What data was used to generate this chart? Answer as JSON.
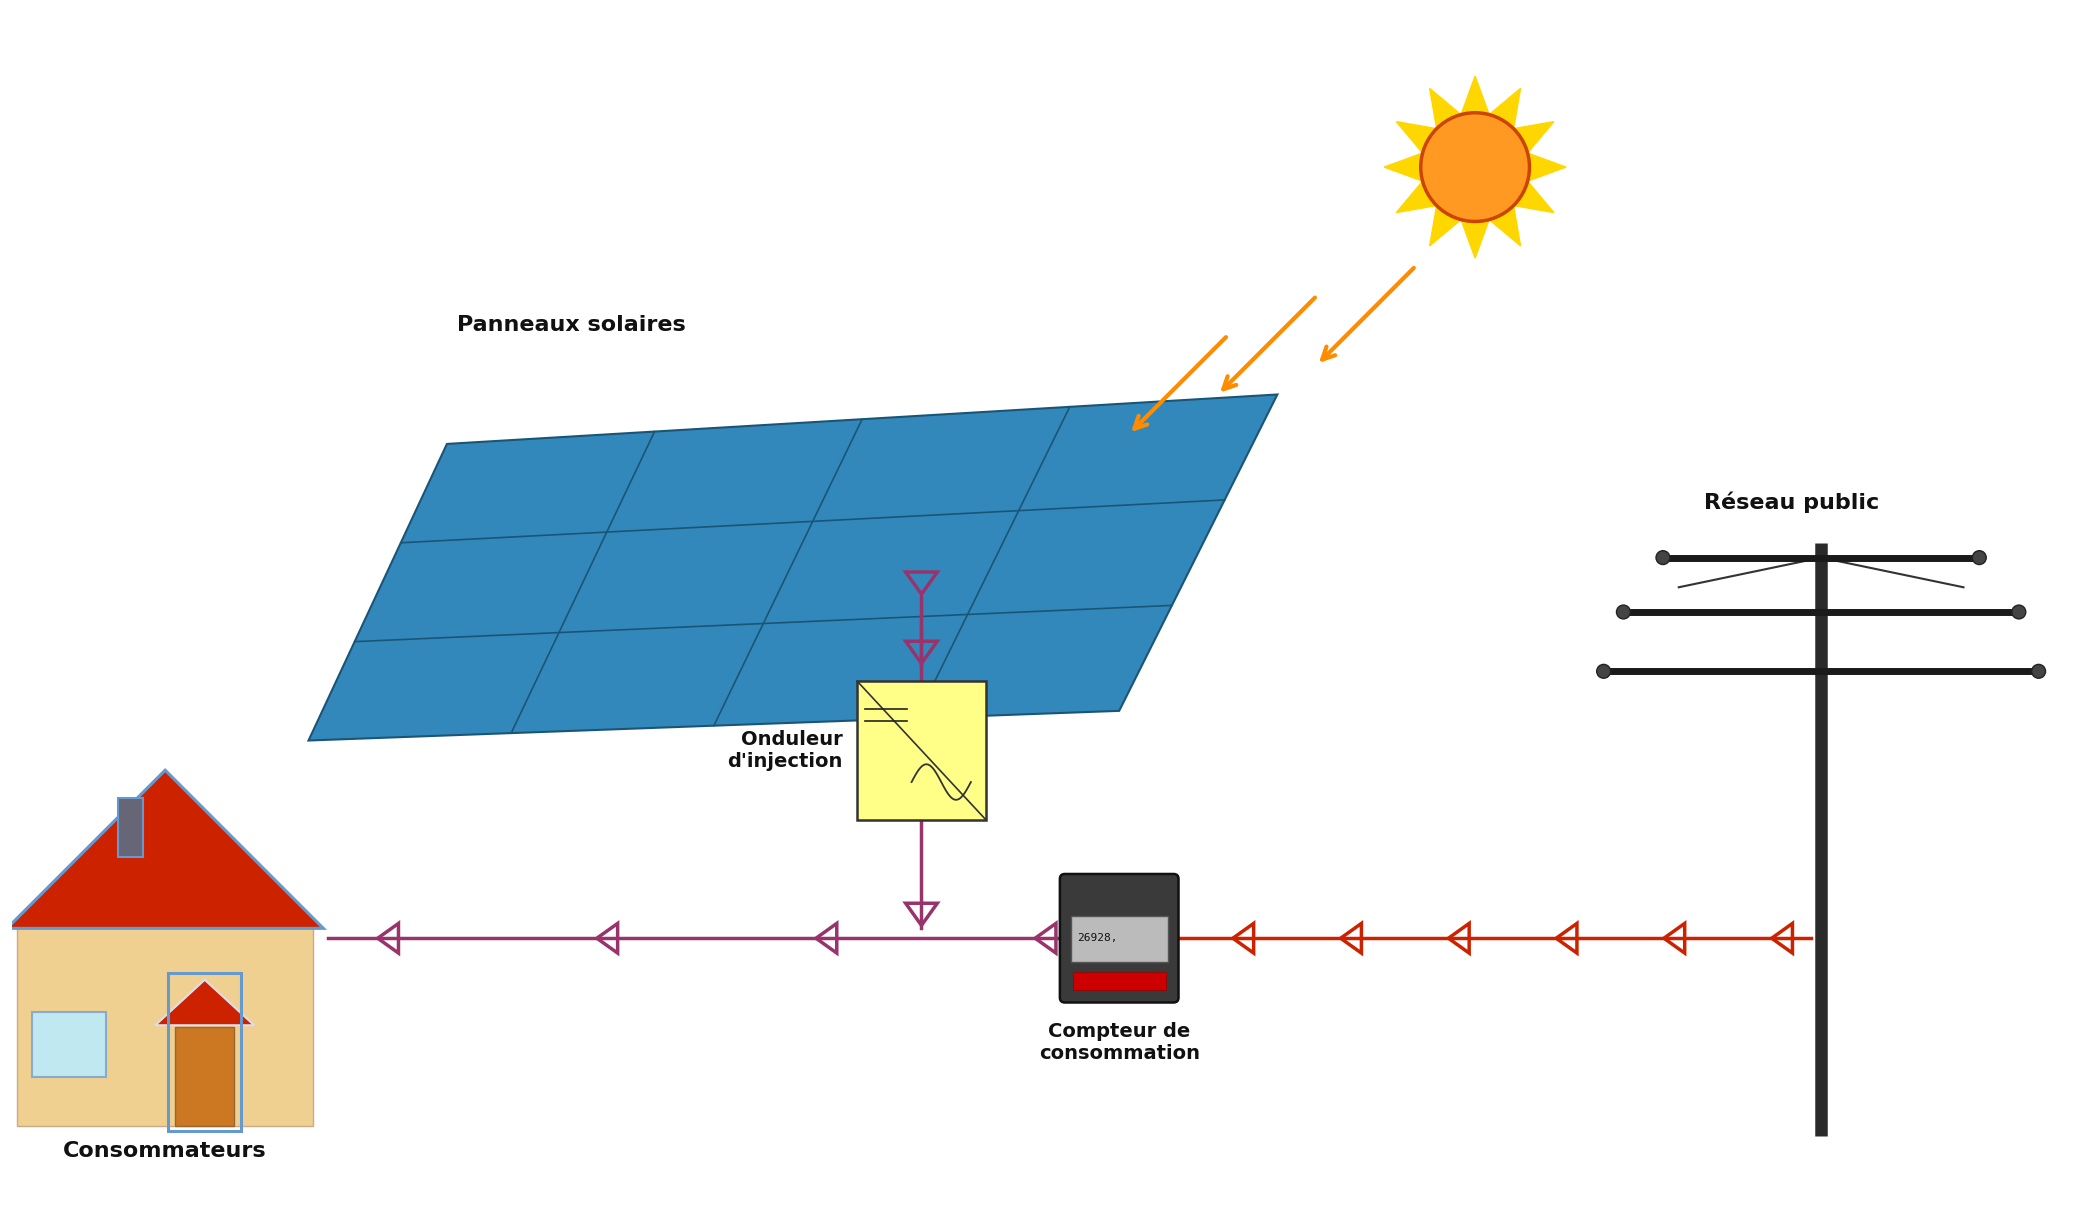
{
  "bg_color": "#ffffff",
  "label_solar": "Panneaux solaires",
  "label_onduleur": "Onduleur\nd'injection",
  "label_compteur": "Compteur de\nconsommation",
  "label_consommateurs": "Consommateurs",
  "label_reseau": "Réseau public",
  "purple": "#99336b",
  "red": "#cc2200",
  "orange": "#ff8c00",
  "yellow": "#ffd700",
  "sun_inner": "#ff9922",
  "onduleur_fill": "#ffff88",
  "panel_main": "#3388bb",
  "panel_dark": "#1a5577",
  "house_roof": "#cc2200",
  "house_wall": "#f0d090",
  "house_chimney": "#666677",
  "house_window": "#c0e8f0",
  "house_door": "#cc7722",
  "pole_dark": "#2a2a2a",
  "font_label": 16,
  "font_label_sm": 14
}
